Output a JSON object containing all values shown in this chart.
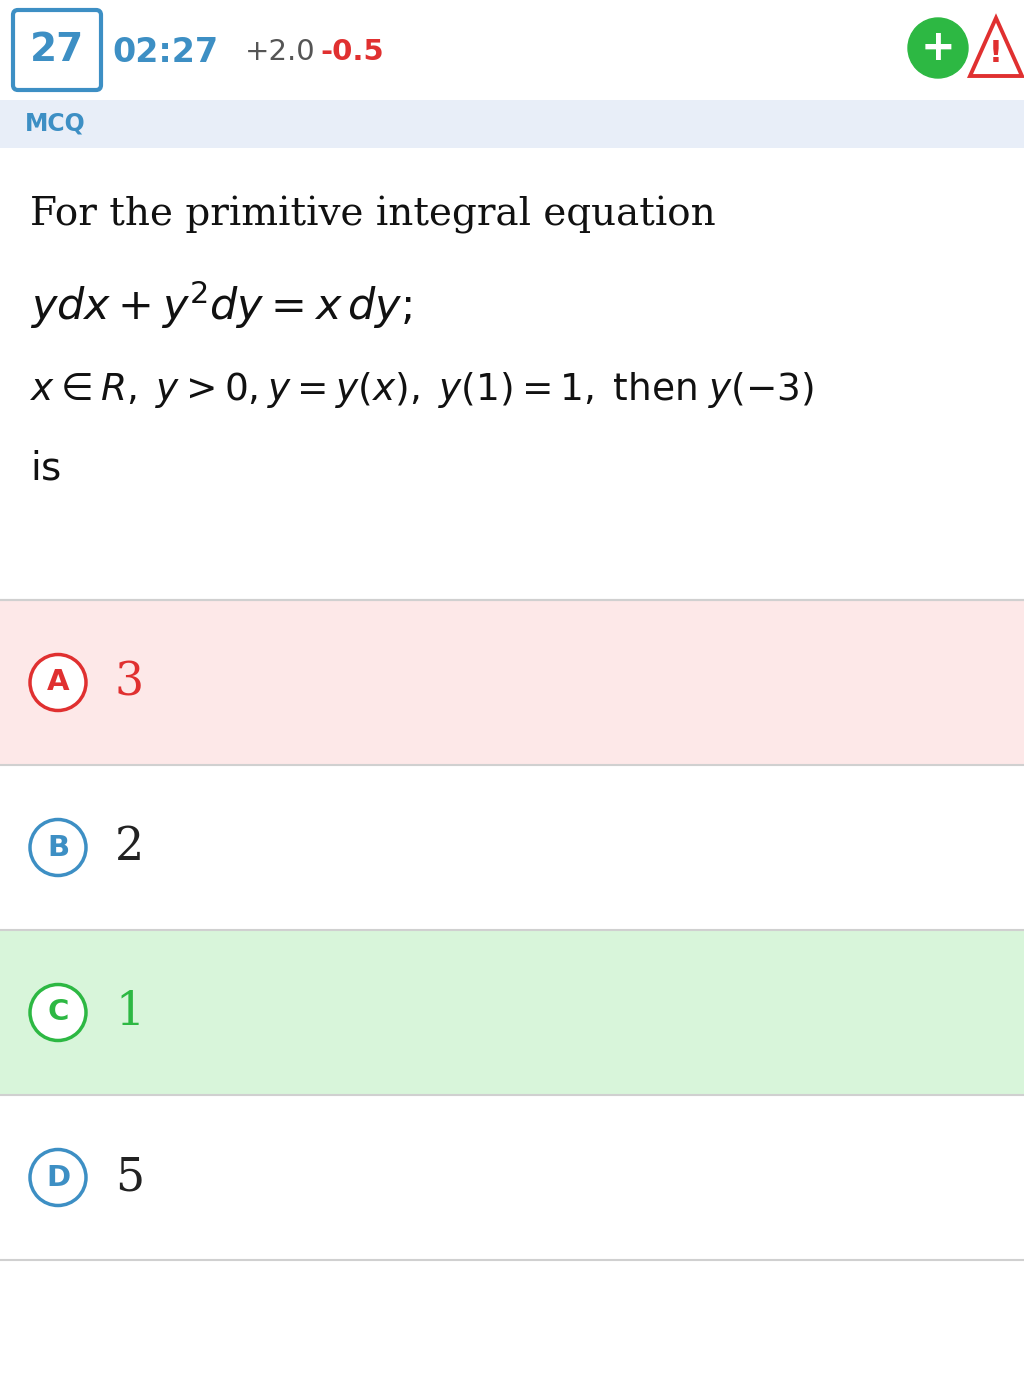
{
  "question_number": "27",
  "timer": "02:27",
  "score_plus": "+2.0",
  "score_minus": "-0.5",
  "question_type": "MCQ",
  "header_bg": "#ffffff",
  "mcq_bar_bg": "#e8eef8",
  "separator_color": "#d0d0d0",
  "number_box_color": "#3d8fc4",
  "timer_color": "#3d8fc4",
  "plus_color": "#666666",
  "minus_color": "#e03030",
  "green_circle_color": "#2db843",
  "red_triangle_color": "#e03030",
  "options": [
    {
      "label": "A",
      "value": "3",
      "bg": "#fde8e8",
      "circle": "#e03030",
      "tcolor": "#e03030"
    },
    {
      "label": "B",
      "value": "2",
      "bg": "#ffffff",
      "circle": "#3d8fc4",
      "tcolor": "#222222"
    },
    {
      "label": "C",
      "value": "1",
      "bg": "#d8f5da",
      "circle": "#2db843",
      "tcolor": "#2db843"
    },
    {
      "label": "D",
      "value": "5",
      "bg": "#ffffff",
      "circle": "#3d8fc4",
      "tcolor": "#222222"
    }
  ],
  "fig_width": 10.24,
  "fig_height": 13.94,
  "dpi": 100
}
